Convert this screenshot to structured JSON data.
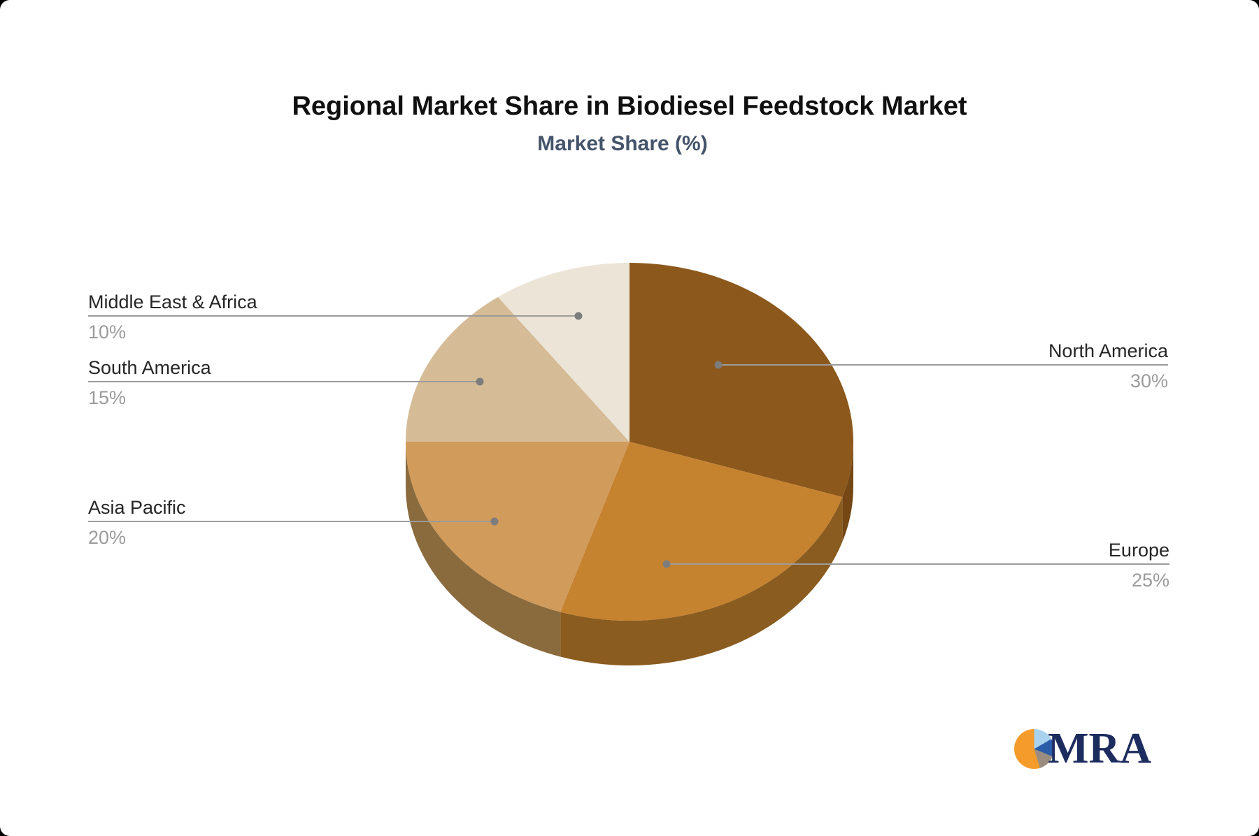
{
  "title": "Regional Market Share in Biodiesel Feedstock Market",
  "subtitle": "Market Share (%)",
  "chart_data": {
    "type": "pie",
    "style": "3d",
    "title": "Regional Market Share in Biodiesel Feedstock Market",
    "subtitle": "Market Share (%)",
    "unit": "%",
    "start_angle_deg": 0,
    "direction": "clockwise",
    "slices": [
      {
        "label": "North America",
        "value": 30,
        "display": "30%",
        "color": "#8C581C",
        "side_color": "#744714",
        "label_side": "right"
      },
      {
        "label": "Europe",
        "value": 25,
        "display": "25%",
        "color": "#C5822F",
        "side_color": "#8B5C1F",
        "label_side": "right"
      },
      {
        "label": "Asia Pacific",
        "value": 20,
        "display": "20%",
        "color": "#D09B5B",
        "side_color": "#8A6B3E",
        "label_side": "left"
      },
      {
        "label": "South America",
        "value": 15,
        "display": "15%",
        "color": "#D6BC96",
        "side_color": "#9C8257",
        "label_side": "left"
      },
      {
        "label": "Middle East & Africa",
        "value": 10,
        "display": "10%",
        "color": "#EDE4D8",
        "side_color": "#C2B299",
        "label_side": "left"
      }
    ],
    "legend": "none",
    "leader_line_color": "#9C9C9C",
    "leader_dot_color": "#7D7D7D"
  },
  "logo": {
    "text": "MRA",
    "navy": "#1D2C5E",
    "icon_colors": {
      "orange": "#F49B2B",
      "light_blue": "#A9D2EE",
      "dark_blue": "#2A5CA8",
      "taupe": "#9A8D80"
    }
  }
}
